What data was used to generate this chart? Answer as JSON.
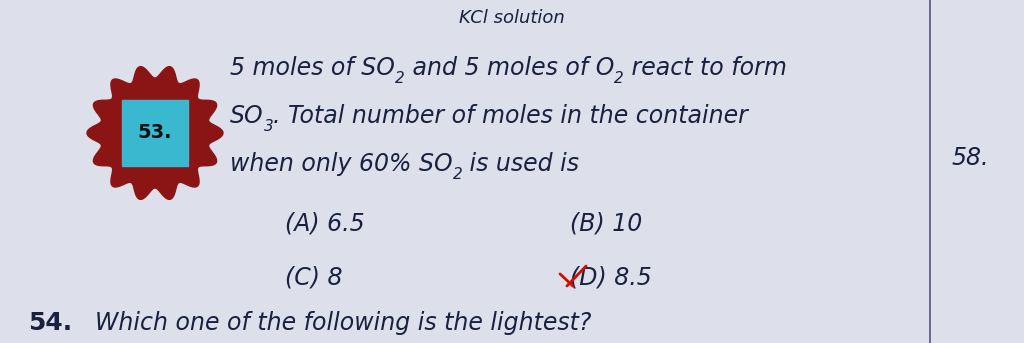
{
  "bg_color": "#dde0ea",
  "text_color": "#1a2040",
  "title": "KCl solution",
  "q53_num": "53.",
  "badge_outer_color": "#8B1515",
  "badge_inner_color": "#3ab8d0",
  "line1a": "5 moles of SO",
  "line1b": "2",
  "line1c": " and 5 moles of O",
  "line1d": "2",
  "line1e": " react to form",
  "line2a": "SO",
  "line2b": "3",
  "line2c": ". Total number of moles in the container",
  "line3a": "when only 60% SO",
  "line3b": "2",
  "line3c": " is used is",
  "optA": "(A) 6.5",
  "optB": "(B) 10",
  "optC": "(C) 8",
  "optD": "(D) 8.5",
  "right_num": "58.",
  "q54_num": "54.",
  "q54_text": "Which one of the following is the lightest?",
  "answer_color": "#cc1100",
  "sep_line_color": "#555577",
  "font_size_main": 17,
  "font_size_sub": 11,
  "font_size_title": 13,
  "font_size_badge": 14
}
